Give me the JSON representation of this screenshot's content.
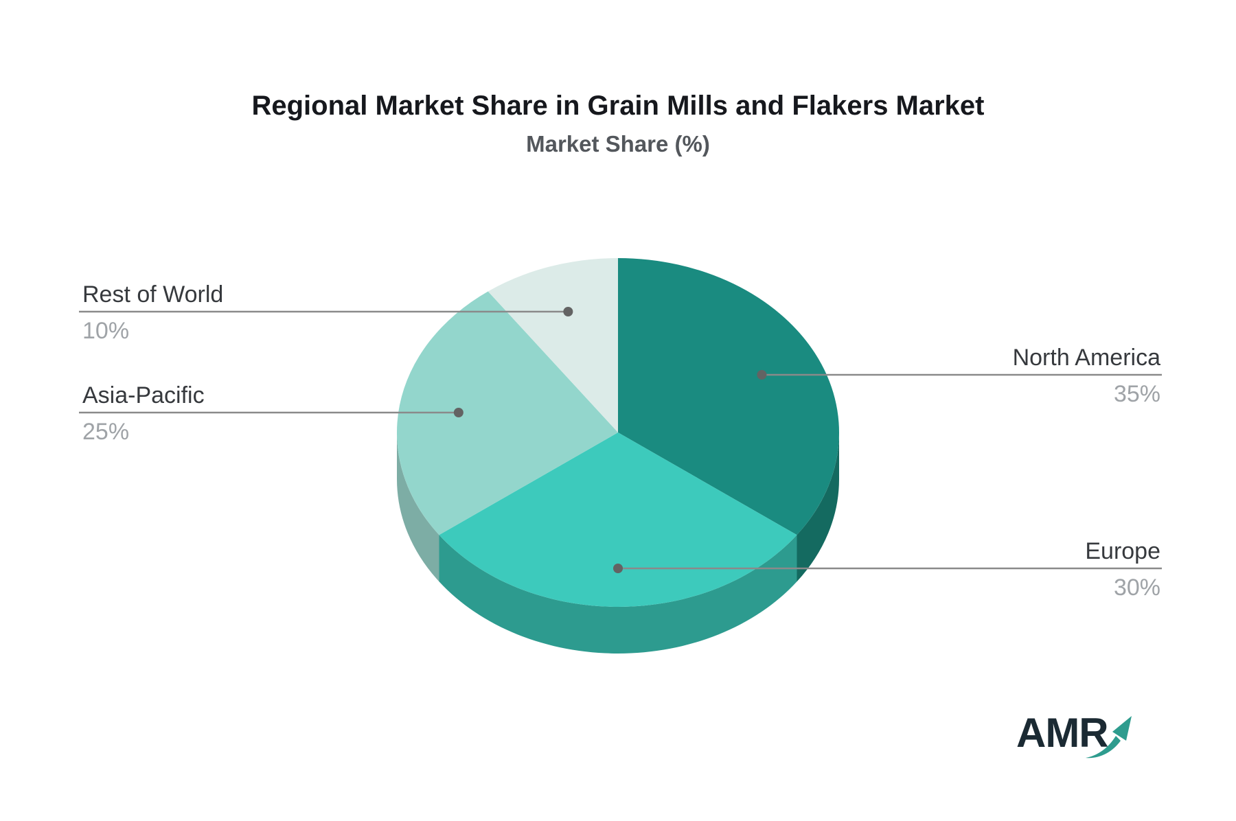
{
  "chart_data": {
    "type": "pie",
    "effect": "3d",
    "title": "Regional Market Share in Grain Mills and Flakers Market",
    "subtitle": "Market Share (%)",
    "unit": "%",
    "start_angle_deg": 0,
    "direction": "clockwise",
    "legend_position": "none",
    "slices": [
      {
        "label": "North America",
        "value": 35,
        "value_label": "35%",
        "color": "#1A8B80",
        "side_color": "#146A60",
        "label_side": "right"
      },
      {
        "label": "Europe",
        "value": 30,
        "value_label": "30%",
        "color": "#3DCABC",
        "side_color": "#2D9B8F",
        "label_side": "right"
      },
      {
        "label": "Asia-Pacific",
        "value": 25,
        "value_label": "25%",
        "color": "#93D6CC",
        "side_color": "#7DADA5",
        "label_side": "left"
      },
      {
        "label": "Rest of World",
        "value": 10,
        "value_label": "10%",
        "color": "#DCEBE8",
        "label_side": "left"
      }
    ]
  },
  "colors": {
    "background": "#FFFFFF",
    "title_text": "#16181D",
    "subtitle_text": "#53575C",
    "label_text": "#36393D",
    "value_text": "#9FA3A7",
    "leader_line": "#8A8A8A",
    "leader_dot": "#636363",
    "logo_text": "#1B2A33",
    "logo_arrow": "#2E9C8E"
  },
  "logo": {
    "text": "AMR"
  }
}
